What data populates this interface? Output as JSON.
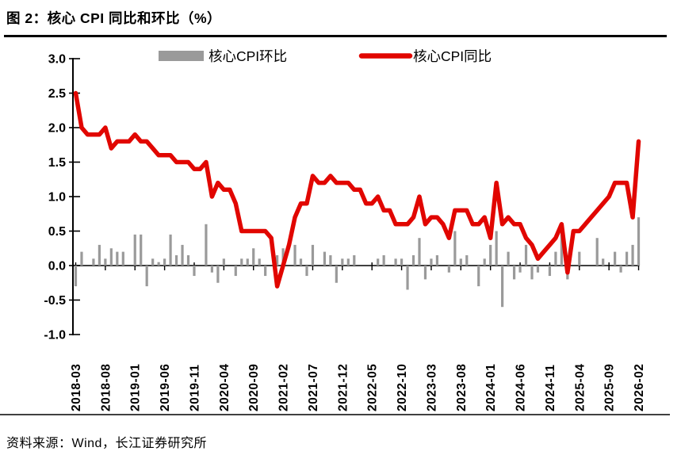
{
  "title": "图 2：核心 CPI 同比和环比（%）",
  "source": "资料来源：Wind，长江证券研究所",
  "colors": {
    "line": "#e10600",
    "bar": "#9a9a9a",
    "axis": "#000000"
  },
  "chart_data": {
    "type": "bar+line",
    "title": "核心 CPI 同比和环比（%）",
    "ylim": [
      -1.0,
      3.0
    ],
    "grid": false,
    "legend_position": "top-center",
    "y_tick_labels": [
      "3.0",
      "2.5",
      "2.0",
      "1.5",
      "1.0",
      "0.5",
      "0.0",
      "-0.5",
      "-1.0"
    ],
    "x_tick_interval": 5,
    "x_tick_labels": [
      "2018-03",
      "2018-08",
      "2019-01",
      "2019-06",
      "2019-11",
      "2020-04",
      "2020-09",
      "2021-02",
      "2021-07",
      "2021-12",
      "2022-05",
      "2022-10",
      "2023-03",
      "2023-08",
      "2024-01",
      "2024-06",
      "2024-11",
      "2025-04",
      "2025-09",
      "2026-02"
    ],
    "categories": [
      "2018-03",
      "2018-04",
      "2018-05",
      "2018-06",
      "2018-07",
      "2018-08",
      "2018-09",
      "2018-10",
      "2018-11",
      "2018-12",
      "2019-01",
      "2019-02",
      "2019-03",
      "2019-04",
      "2019-05",
      "2019-06",
      "2019-07",
      "2019-08",
      "2019-09",
      "2019-10",
      "2019-11",
      "2019-12",
      "2020-01",
      "2020-02",
      "2020-03",
      "2020-04",
      "2020-05",
      "2020-06",
      "2020-07",
      "2020-08",
      "2020-09",
      "2020-10",
      "2020-11",
      "2020-12",
      "2021-01",
      "2021-02",
      "2021-03",
      "2021-04",
      "2021-05",
      "2021-06",
      "2021-07",
      "2021-08",
      "2021-09",
      "2021-10",
      "2021-11",
      "2021-12",
      "2022-01",
      "2022-02",
      "2022-03",
      "2022-04",
      "2022-05",
      "2022-06",
      "2022-07",
      "2022-08",
      "2022-09",
      "2022-10",
      "2022-11",
      "2022-12",
      "2023-01",
      "2023-02",
      "2023-03",
      "2023-04",
      "2023-05",
      "2023-06",
      "2023-07",
      "2023-08",
      "2023-09",
      "2023-10",
      "2023-11",
      "2023-12",
      "2024-01",
      "2024-02",
      "2024-03",
      "2024-04",
      "2024-05",
      "2024-06",
      "2024-07",
      "2024-08",
      "2024-09",
      "2024-10",
      "2024-11",
      "2024-12",
      "2025-01",
      "2025-02",
      "2025-03",
      "2025-04",
      "2025-05",
      "2025-06",
      "2025-07",
      "2025-08",
      "2025-09",
      "2025-10",
      "2025-11",
      "2025-12",
      "2026-01",
      "2026-02"
    ],
    "series": [
      {
        "name": "核心CPI环比",
        "type": "bar",
        "color": "#9a9a9a",
        "values": [
          -0.3,
          0.2,
          0.0,
          0.1,
          0.3,
          0.1,
          0.25,
          0.2,
          0.2,
          0.0,
          0.45,
          0.45,
          -0.3,
          0.1,
          0.05,
          0.1,
          0.45,
          0.15,
          0.3,
          0.15,
          -0.15,
          0.0,
          0.6,
          -0.1,
          -0.25,
          0.1,
          0.0,
          -0.15,
          0.1,
          0.1,
          0.25,
          0.1,
          -0.15,
          0.0,
          0.15,
          0.25,
          0.0,
          0.3,
          0.1,
          -0.15,
          0.3,
          0.0,
          0.2,
          0.15,
          -0.25,
          0.1,
          0.1,
          0.15,
          0.0,
          0.0,
          0.0,
          0.1,
          0.15,
          0.0,
          0.1,
          0.1,
          -0.35,
          0.15,
          0.4,
          -0.2,
          0.1,
          0.15,
          0.0,
          -0.1,
          0.5,
          0.1,
          0.15,
          0.0,
          -0.3,
          0.1,
          0.3,
          0.5,
          -0.6,
          0.2,
          -0.2,
          -0.1,
          0.3,
          -0.2,
          -0.1,
          0.0,
          -0.15,
          0.2,
          0.5,
          -0.2,
          0.0,
          0.2,
          0.0,
          0.0,
          0.4,
          0.1,
          0.0,
          0.2,
          -0.1,
          0.2,
          0.3,
          0.7
        ]
      },
      {
        "name": "核心CPI同比",
        "type": "line",
        "color": "#e10600",
        "values": [
          2.5,
          2.0,
          1.9,
          1.9,
          1.9,
          2.0,
          1.7,
          1.8,
          1.8,
          1.8,
          1.9,
          1.8,
          1.8,
          1.7,
          1.6,
          1.6,
          1.6,
          1.5,
          1.5,
          1.5,
          1.4,
          1.4,
          1.5,
          1.0,
          1.2,
          1.1,
          1.1,
          0.9,
          0.5,
          0.5,
          0.5,
          0.5,
          0.5,
          0.4,
          -0.3,
          0.0,
          0.3,
          0.7,
          0.9,
          0.9,
          1.3,
          1.2,
          1.2,
          1.3,
          1.2,
          1.2,
          1.2,
          1.1,
          1.1,
          0.9,
          0.9,
          1.0,
          0.8,
          0.8,
          0.6,
          0.6,
          0.6,
          0.7,
          1.0,
          0.6,
          0.7,
          0.7,
          0.6,
          0.4,
          0.8,
          0.8,
          0.8,
          0.6,
          0.6,
          0.7,
          0.4,
          1.2,
          0.6,
          0.7,
          0.6,
          0.6,
          0.4,
          0.3,
          0.1,
          0.2,
          0.3,
          0.4,
          0.6,
          -0.1,
          0.5,
          0.5,
          0.6,
          0.7,
          0.8,
          0.9,
          1.0,
          1.2,
          1.2,
          1.2,
          0.7,
          1.8
        ]
      }
    ]
  }
}
